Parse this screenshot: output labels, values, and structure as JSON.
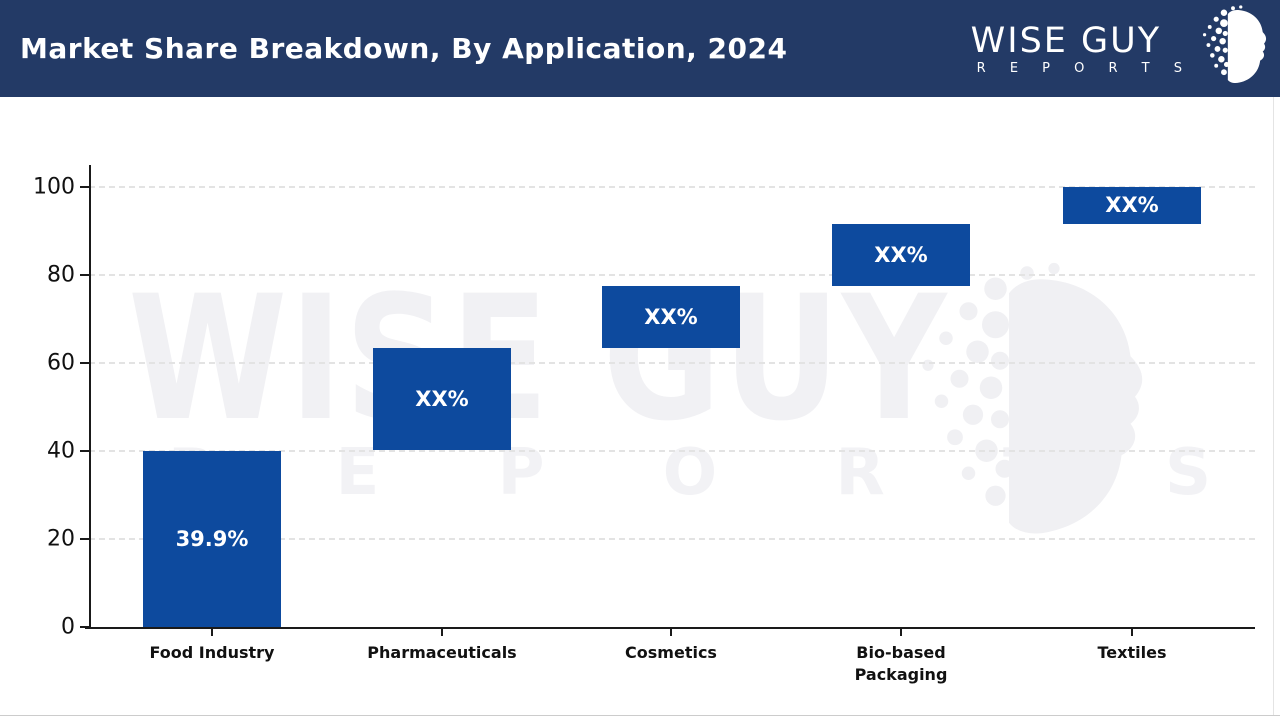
{
  "header": {
    "title": "Market Share Breakdown, By Application, 2024",
    "bg_color": "#233a66",
    "logo": {
      "line1": "WISE GUY",
      "line2": "R E P O R T S",
      "face_icon": "dotted-face-profile"
    }
  },
  "watermark": {
    "line1": "WISE GUY",
    "line2": "R E P O R T S",
    "face_icon": "dotted-face-profile"
  },
  "chart_data": {
    "type": "bar",
    "subtype": "waterfall",
    "title": "Market Share Breakdown, By Application, 2024",
    "xlabel": "",
    "ylabel": "",
    "categories": [
      "Food Industry",
      "Pharmaceuticals",
      "Cosmetics",
      "Bio-based\nPackaging",
      "Textiles"
    ],
    "segments": [
      {
        "category": "Food Industry",
        "start": 0,
        "end": 39.9,
        "label": "39.9%"
      },
      {
        "category": "Pharmaceuticals",
        "start": 40.3,
        "end": 63.5,
        "label": "XX%"
      },
      {
        "category": "Cosmetics",
        "start": 63.5,
        "end": 77.5,
        "label": "XX%"
      },
      {
        "category": "Bio-based Packaging",
        "start": 77.5,
        "end": 91.5,
        "label": "XX%"
      },
      {
        "category": "Textiles",
        "start": 91.6,
        "end": 100,
        "label": "XX%"
      }
    ],
    "yticks": [
      0,
      20,
      40,
      60,
      80,
      100
    ],
    "ylim": [
      0,
      105
    ],
    "grid": "horizontal-dashed",
    "legend": "none",
    "bar_color": "#0d4a9e",
    "bar_label_color": "#ffffff",
    "masked_value_placeholder": "XX%"
  }
}
